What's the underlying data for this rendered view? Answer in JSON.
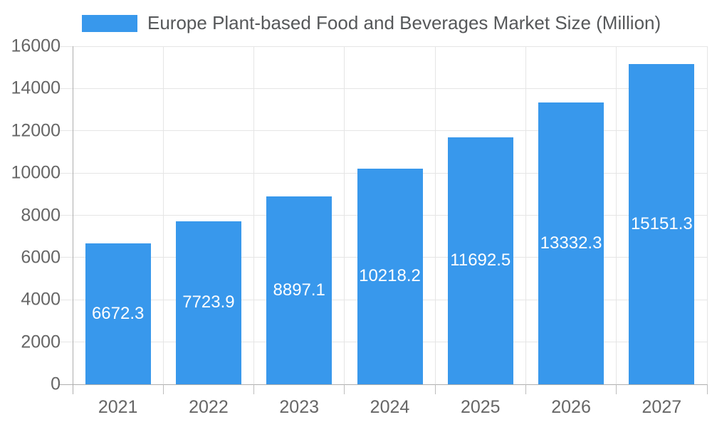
{
  "chart_data": {
    "type": "bar",
    "title": "Europe Plant-based Food and Beverages Market Size (Million)",
    "categories": [
      "2021",
      "2022",
      "2023",
      "2024",
      "2025",
      "2026",
      "2027"
    ],
    "series": [
      {
        "name": "Europe Plant-based Food and Beverages Market Size (Million)",
        "values": [
          6672.3,
          7723.9,
          8897.1,
          10218.2,
          11692.5,
          13332.3,
          15151.3
        ]
      }
    ],
    "data_labels": [
      "6672.3",
      "7723.9",
      "8897.1",
      "10218.2",
      "11692.5",
      "13332.3",
      "15151.3"
    ],
    "xlabel": "",
    "ylabel": "",
    "ylim": [
      0,
      16000
    ],
    "yticks": [
      0,
      2000,
      4000,
      6000,
      8000,
      10000,
      12000,
      14000,
      16000
    ],
    "grid": true,
    "legend_position": "top-left",
    "bar_color": "#3898ec",
    "data_label_color": "#ffffff"
  },
  "colors": {
    "background": "#ffffff",
    "gridline": "#e5e5e5",
    "axis_line": "#aeaeae",
    "tick_label": "#666666",
    "title_text": "#56585a"
  }
}
